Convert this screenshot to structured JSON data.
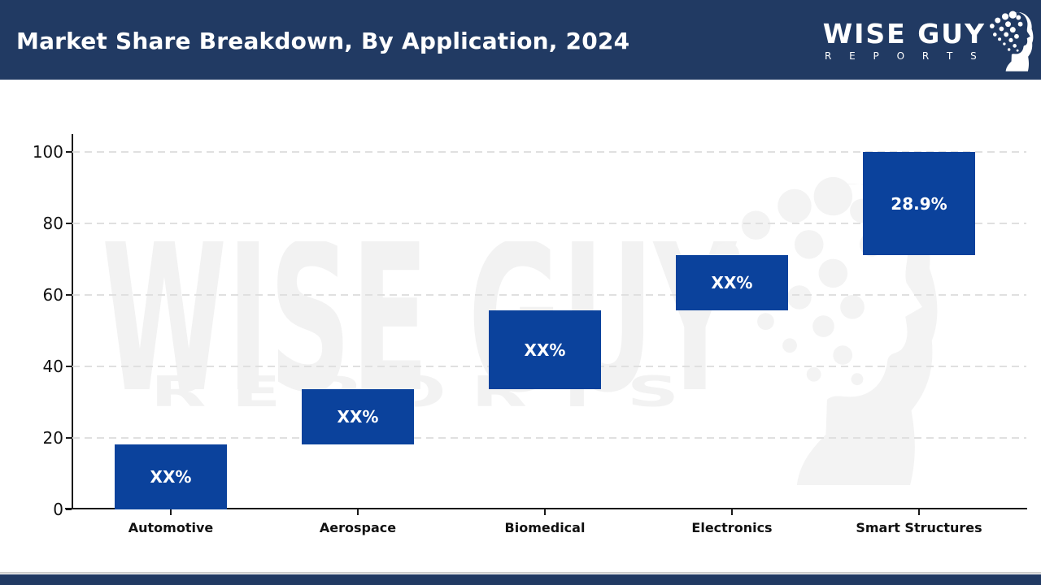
{
  "header": {
    "title": "Market Share Breakdown, By Application, 2024",
    "logo": {
      "line1": "WISE GUY",
      "line2": "R E P O R T S",
      "head_icon": "dotted-face-profile"
    }
  },
  "watermark": {
    "line1": "WISE GUY",
    "line2": "R E P O R T S",
    "head_icon": "dotted-face-profile"
  },
  "colors": {
    "header_bg": "#213a63",
    "footer_bg": "#213a63",
    "bar_blue": "#0b429c",
    "bar_label_text": "#ffffff",
    "grid_gray": "#e0e0e0",
    "axis_black": "#1a1a1a",
    "watermark_gray": "#f2f2f2",
    "pre_footer_line_gray": "#cccccc"
  },
  "chart_data": {
    "type": "bar",
    "subtype": "floating-waterfall",
    "title": "Market Share Breakdown, By Application, 2024",
    "xlabel": "",
    "ylabel": "",
    "ylim": [
      0,
      100
    ],
    "yticks": [
      0,
      20,
      40,
      60,
      80,
      100
    ],
    "grid": "horizontal dashed",
    "legend": "none",
    "categories": [
      "Automotive",
      "Aerospace",
      "Biomedical",
      "Electronics",
      "Smart Structures"
    ],
    "series": [
      {
        "name": "Market share (%)",
        "segments": [
          {
            "category": "Automotive",
            "start": 0,
            "end": 18.2,
            "height": 18.2,
            "label": "XX%"
          },
          {
            "category": "Aerospace",
            "start": 18.2,
            "end": 33.6,
            "height": 15.4,
            "label": "XX%"
          },
          {
            "category": "Biomedical",
            "start": 33.6,
            "end": 55.7,
            "height": 22.1,
            "label": "XX%"
          },
          {
            "category": "Electronics",
            "start": 55.7,
            "end": 71.1,
            "height": 15.4,
            "label": "XX%"
          },
          {
            "category": "Smart Structures",
            "start": 71.1,
            "end": 100,
            "height": 28.9,
            "label": "28.9%"
          }
        ]
      }
    ]
  }
}
